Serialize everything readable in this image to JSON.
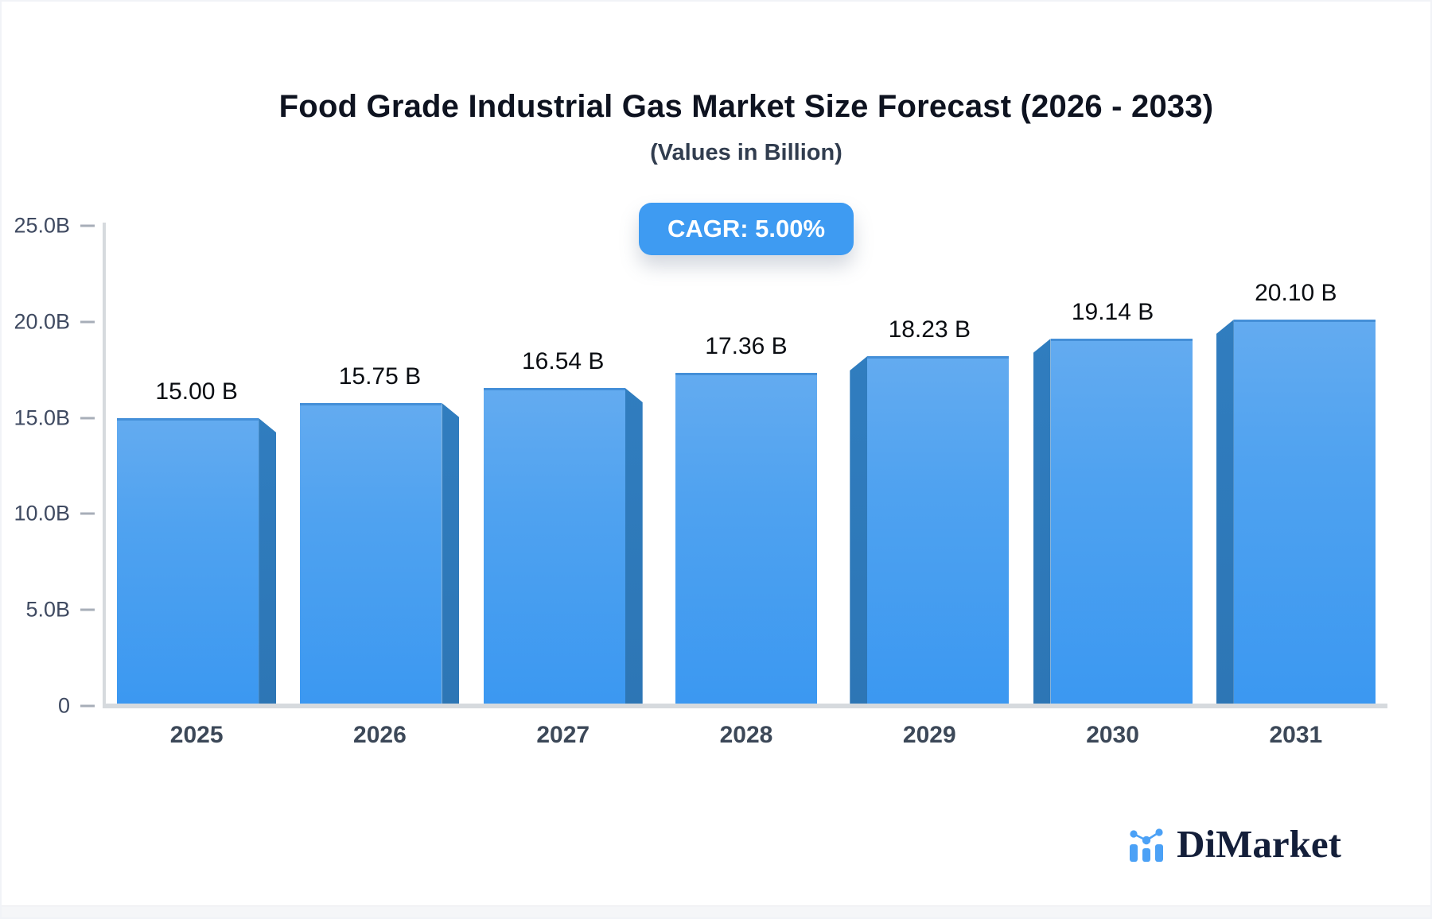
{
  "title": "Food Grade Industrial Gas Market Size Forecast (2026 - 2033)",
  "subtitle": "(Values in Billion)",
  "cagr_badge": {
    "label": "CAGR: 5.00%"
  },
  "chart_data": {
    "type": "bar",
    "title": "Food Grade Industrial Gas Market Size Forecast (2026 - 2033)",
    "subtitle": "(Values in Billion)",
    "cagr": "5.00%",
    "categories": [
      "2025",
      "2026",
      "2027",
      "2028",
      "2029",
      "2030",
      "2031"
    ],
    "values": [
      15.0,
      15.75,
      16.54,
      17.36,
      18.23,
      19.14,
      20.1
    ],
    "value_labels": [
      "15.00 B",
      "15.75 B",
      "16.54 B",
      "17.36 B",
      "18.23 B",
      "19.14 B",
      "20.10 B"
    ],
    "xlabel": "",
    "ylabel": "",
    "ylim": [
      0,
      25
    ],
    "yticks": [
      {
        "label": "0",
        "value": 0
      },
      {
        "label": "5.0B",
        "value": 5
      },
      {
        "label": "10.0B",
        "value": 10
      },
      {
        "label": "15.0B",
        "value": 15
      },
      {
        "label": "20.0B",
        "value": 20
      },
      {
        "label": "25.0B",
        "value": 25
      }
    ],
    "grid": false,
    "legend": false,
    "bar_style": "3d"
  },
  "colors": {
    "badge_bg": "#3E9BF2",
    "badge_text": "#FFFFFF",
    "bar_top": "#63ABF0",
    "bar_bottom": "#3B98F1",
    "bar_side": "#2D76B5",
    "bar_top_line": "#448FD8",
    "axis_line": "#D6DADE",
    "tick_label": "#3F4A61",
    "year_label": "#3C4858",
    "value_label": "#0A0D12",
    "title_text": "#0E1320",
    "subtitle_text": "#313D4F",
    "logo_icon": "#4BA1F6",
    "logo_text": "#141F3A"
  },
  "logo": {
    "text": "DiMarket"
  }
}
